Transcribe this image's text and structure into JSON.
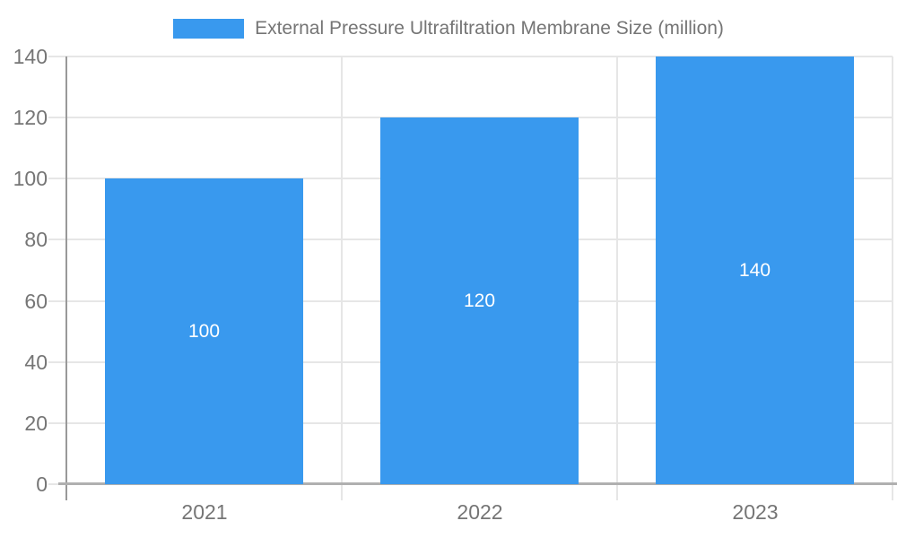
{
  "chart_data": {
    "type": "bar",
    "title": "External Pressure Ultrafiltration Membrane Size (million)",
    "legend_entries": [
      "External Pressure Ultrafiltration Membrane Size (million)"
    ],
    "legend_position": "top",
    "categories": [
      "2021",
      "2022",
      "2023"
    ],
    "series": [
      {
        "name": "External Pressure Ultrafiltration Membrane Size (million)",
        "values": [
          100,
          120,
          140
        ]
      }
    ],
    "data_labels": [
      "100",
      "120",
      "140"
    ],
    "data_labels_visible": true,
    "xlabel": "",
    "ylabel": "",
    "ylim": [
      0,
      140
    ],
    "yticks": [
      0,
      20,
      40,
      60,
      80,
      100,
      120,
      140
    ],
    "grid": "on"
  },
  "colors": {
    "bar": "#3999ee",
    "data_label_text": "#ffffff",
    "axis_text": "#757575",
    "legend_text": "#757575",
    "gridline": "#e6e6e6",
    "x_axis_line": "#b0b0b0",
    "y_axis_line": "#999999",
    "background": "#ffffff"
  }
}
